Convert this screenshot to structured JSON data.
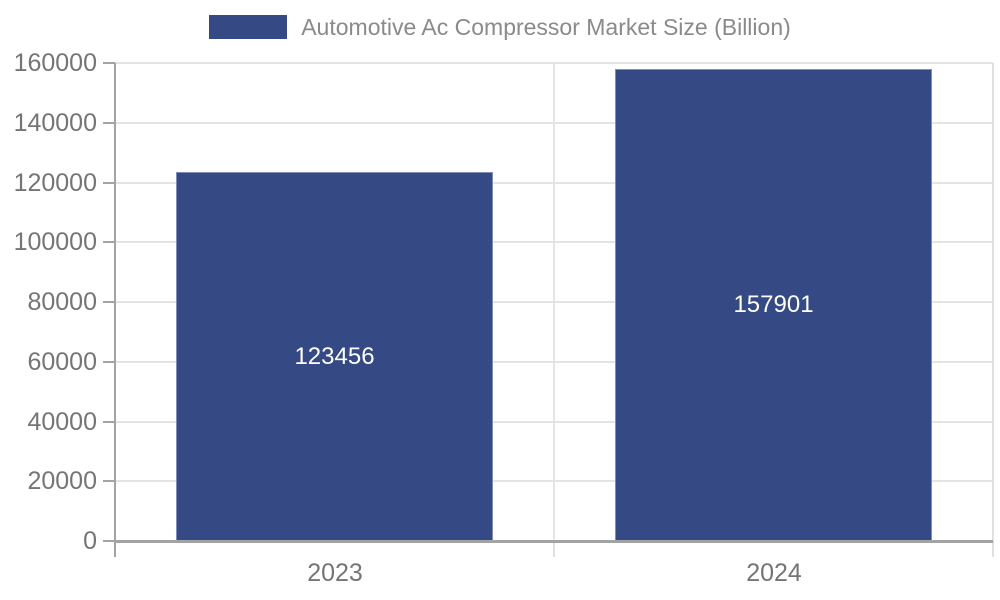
{
  "chart_data": {
    "type": "bar",
    "title": "Automotive Ac Compressor Market Size (Billion)",
    "categories": [
      "2023",
      "2024"
    ],
    "series": [
      {
        "name": "Automotive Ac Compressor Market Size (Billion)",
        "values": [
          123456,
          157901
        ],
        "value_labels": [
          "123456",
          "157901"
        ]
      }
    ],
    "xlabel": "",
    "ylabel": "",
    "ylim": [
      0,
      160000
    ],
    "ytick_step": 20000,
    "ytick_labels": [
      "0",
      "20000",
      "40000",
      "60000",
      "80000",
      "100000",
      "120000",
      "140000",
      "160000"
    ],
    "grid": true,
    "legend_position": "top-center"
  },
  "legend": {
    "label": "Automotive Ac Compressor Market Size (Billion)"
  },
  "colors": {
    "bar_fill": "#354a84",
    "bar_edge": "rgba(190,198,224,0.55)",
    "gridline": "#e4e4e4",
    "axis_line": "#a3a3a3",
    "tick_label": "#757575",
    "legend_text": "#8a8a8a",
    "value_label": "#fefefe",
    "plot_border_right": "#e0e0e0",
    "background": "#ffffff"
  }
}
